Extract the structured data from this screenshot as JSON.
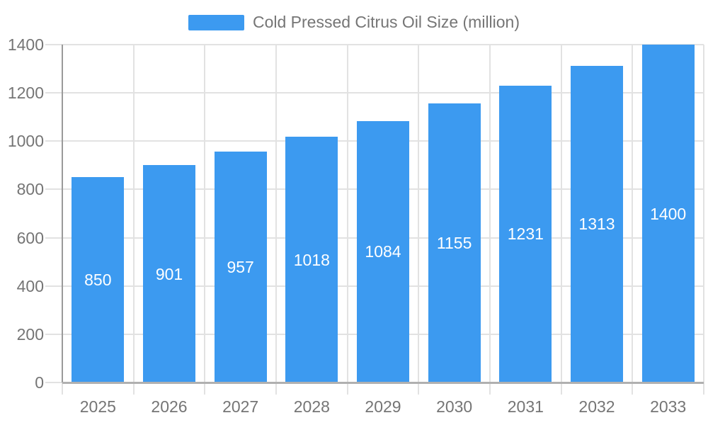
{
  "legend": {
    "label": "Cold Pressed Citrus Oil Size (million)"
  },
  "colors": {
    "bar": "#3C9AF0",
    "grid": "#E2E2E2",
    "axis_y": "#9A9A9A",
    "axis_x": "#B0B0B0",
    "tick_text": "#757575",
    "value_label": "#FFFFFF",
    "background": "#FFFFFF"
  },
  "chart_data": {
    "type": "bar",
    "title": "",
    "series_name": "Cold Pressed Citrus Oil Size (million)",
    "categories": [
      "2025",
      "2026",
      "2027",
      "2028",
      "2029",
      "2030",
      "2031",
      "2032",
      "2033"
    ],
    "values": [
      850,
      901,
      957,
      1018,
      1084,
      1155,
      1231,
      1313,
      1400
    ],
    "xlabel": "",
    "ylabel": "",
    "ylim": [
      0,
      1400
    ],
    "ytick_step": 200,
    "grid": true,
    "legend_position": "top",
    "bar_value_labels": "inside-middle"
  }
}
